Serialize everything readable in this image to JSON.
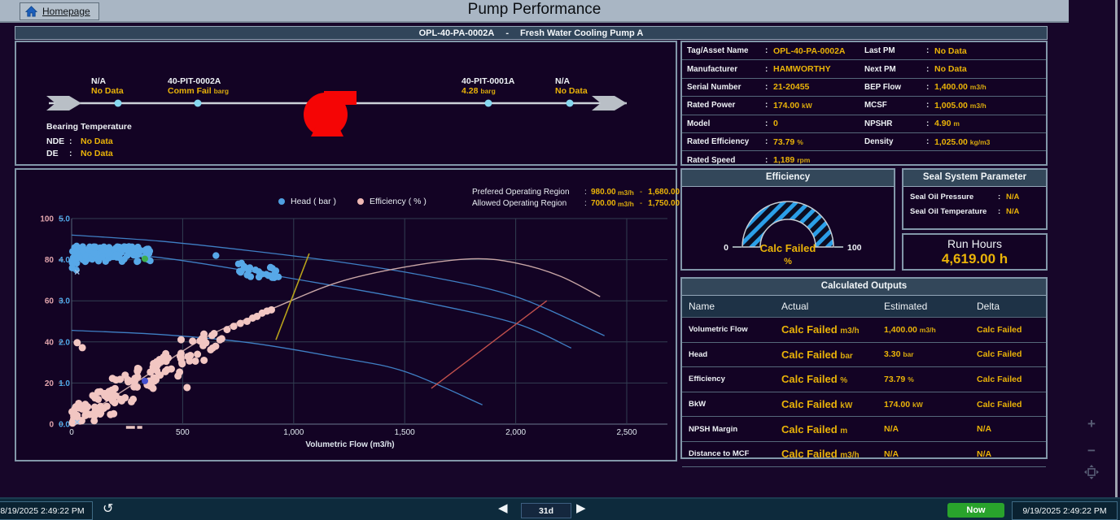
{
  "punct": {
    "colon": ":",
    "dash": "-"
  },
  "header": {
    "homepage_label": "Homepage",
    "title": "Pump Performance"
  },
  "subheader": {
    "tag": "OPL-40-PA-0002A",
    "separator": "-",
    "name": "Fresh Water Cooling Pump A"
  },
  "schematic": {
    "sensors": [
      {
        "tag": "N/A",
        "value": "No Data",
        "unit": ""
      },
      {
        "tag": "40-PIT-0002A",
        "value": "Comm Fail",
        "unit": "barg"
      },
      {
        "tag": "40-PIT-0001A",
        "value": "4.28",
        "unit": "barg"
      },
      {
        "tag": "N/A",
        "value": "No Data",
        "unit": ""
      }
    ],
    "bearing": {
      "title": "Bearing Temperature",
      "rows": [
        {
          "label": "NDE",
          "value": "No Data"
        },
        {
          "label": "DE",
          "value": "No Data"
        }
      ]
    }
  },
  "asset_info": {
    "rows": [
      {
        "l1": "Tag/Asset Name",
        "v1": "OPL-40-PA-0002A",
        "u1": "",
        "l2": "Last PM",
        "v2": "No Data",
        "u2": ""
      },
      {
        "l1": "Manufacturer",
        "v1": "HAMWORTHY",
        "u1": "",
        "l2": "Next PM",
        "v2": "No Data",
        "u2": ""
      },
      {
        "l1": "Serial Number",
        "v1": "21-20455",
        "u1": "",
        "l2": "BEP Flow",
        "v2": "1,400.00",
        "u2": "m3/h"
      },
      {
        "l1": "Rated Power",
        "v1": "174.00",
        "u1": "kW",
        "l2": "MCSF",
        "v2": "1,005.00",
        "u2": "m3/h"
      },
      {
        "l1": "Model",
        "v1": "0",
        "u1": "",
        "l2": "NPSHR",
        "v2": "4.90",
        "u2": "m"
      },
      {
        "l1": "Rated Efficiency",
        "v1": "73.79",
        "u1": "%",
        "l2": "Density",
        "v2": "1,025.00",
        "u2": "kg/m3"
      },
      {
        "l1": "Rated Speed",
        "v1": "1,189",
        "u1": "rpm",
        "l2": "",
        "v2": "",
        "u2": ""
      }
    ]
  },
  "chart": {
    "legend": [
      {
        "label": "Head ( bar )",
        "color": "#4f9fe0"
      },
      {
        "label": "Efficiency ( % )",
        "color": "#efb8b4"
      }
    ],
    "regions": [
      {
        "label": "Prefered Operating Region",
        "from": "980.00",
        "to": "1,680.00",
        "unit": "m3/h"
      },
      {
        "label": "Allowed Operating Region",
        "from": "700.00",
        "to": "1,750.00",
        "unit": "m3/h"
      }
    ],
    "chart_data": {
      "type": "scatter+line",
      "xlabel": "Volumetric Flow (m3/h)",
      "xlim": [
        0,
        2700
      ],
      "x_ticks": [
        "0",
        "500",
        "1,000",
        "1,500",
        "2,000",
        "2,500"
      ],
      "x_tick_values": [
        0,
        500,
        1000,
        1500,
        2000,
        2500
      ],
      "head_axis": {
        "label": "Head (bar)",
        "color": "#4fa8e8",
        "lim": [
          0,
          5
        ],
        "ticks": [
          "0.0",
          "1.0",
          "2.0",
          "3.0",
          "4.0",
          "5.0"
        ],
        "values": [
          0,
          1,
          2,
          3,
          4,
          5
        ]
      },
      "eff_axis": {
        "label": "Efficiency (%)",
        "color": "#e2a5ad",
        "lim": [
          0,
          100
        ],
        "ticks": [
          "0",
          "20",
          "40",
          "60",
          "80",
          "100"
        ],
        "values": [
          0,
          20,
          40,
          60,
          80,
          100
        ]
      },
      "curves": [
        {
          "name": "head-curve-upper",
          "color": "#3f7fc4",
          "width": 1.3,
          "points": [
            [
              0,
              4.6
            ],
            [
              400,
              4.45
            ],
            [
              800,
              4.22
            ],
            [
              1200,
              3.95
            ],
            [
              1600,
              3.6
            ],
            [
              2000,
              3.1
            ],
            [
              2400,
              2.15
            ]
          ]
        },
        {
          "name": "head-curve-mid",
          "color": "#3f7fc4",
          "width": 1.3,
          "points": [
            [
              0,
              4.25
            ],
            [
              400,
              4.05
            ],
            [
              800,
              3.72
            ],
            [
              1200,
              3.35
            ],
            [
              1600,
              2.95
            ],
            [
              2000,
              2.45
            ],
            [
              2250,
              1.85
            ]
          ]
        },
        {
          "name": "head-curve-lower",
          "color": "#3f7fc4",
          "width": 1.3,
          "points": [
            [
              0,
              2.28
            ],
            [
              400,
              2.18
            ],
            [
              800,
              1.98
            ],
            [
              1200,
              1.62
            ],
            [
              1500,
              1.28
            ],
            [
              1850,
              0.47
            ]
          ]
        },
        {
          "name": "efficiency-curve",
          "color": "#c9a6a6",
          "width": 1.4,
          "points": [
            [
              0,
              0
            ],
            [
              300,
              1.05
            ],
            [
              600,
              2.1
            ],
            [
              900,
              2.8
            ],
            [
              1200,
              3.45
            ],
            [
              1500,
              3.82
            ],
            [
              1800,
              4.02
            ],
            [
              2000,
              3.92
            ],
            [
              2200,
              3.6
            ],
            [
              2380,
              3.1
            ]
          ]
        },
        {
          "name": "region-line-yellow",
          "color": "#b8a21a",
          "width": 1.6,
          "points": [
            [
              920,
              2.05
            ],
            [
              1070,
              4.15
            ]
          ]
        },
        {
          "name": "mcsf-line-red",
          "color": "#c0504d",
          "width": 1.4,
          "points": [
            [
              1620,
              0.87
            ],
            [
              2140,
              3.0
            ]
          ]
        }
      ],
      "scatter": [
        {
          "name": "head-points",
          "color": "#57a8e8",
          "r": 4.2,
          "seed": 7,
          "boxes": [
            [
              0,
              360,
              3.95,
              4.32,
              115
            ],
            [
              0,
              25,
              3.75,
              4.35,
              12
            ],
            [
              745,
              935,
              3.55,
              3.92,
              26
            ]
          ],
          "points": [
            [
              650,
              4.1
            ]
          ]
        },
        {
          "name": "efficiency-points",
          "color": "#f2c6c2",
          "r": 4.5,
          "seed": 13,
          "boxes": [
            [
              0,
              110,
              0.02,
              0.55,
              26
            ],
            [
              90,
              200,
              0.15,
              0.85,
              24
            ],
            [
              180,
              300,
              0.5,
              1.2,
              22
            ],
            [
              280,
              400,
              0.85,
              1.5,
              20
            ],
            [
              380,
              500,
              1.15,
              1.8,
              18
            ],
            [
              480,
              600,
              1.5,
              2.1,
              16
            ],
            [
              580,
              680,
              1.8,
              2.25,
              10
            ]
          ],
          "points": [
            [
              25,
              1.98
            ],
            [
              48,
              1.86
            ],
            [
              520,
              0.89
            ],
            [
              700,
              2.3
            ],
            [
              730,
              2.38
            ],
            [
              760,
              2.45
            ],
            [
              790,
              2.5
            ],
            [
              815,
              2.58
            ],
            [
              835,
              2.62
            ],
            [
              858,
              2.7
            ],
            [
              880,
              2.75
            ],
            [
              900,
              2.78
            ]
          ]
        }
      ],
      "x_markers": [
        [
          25,
          3.7
        ],
        [
          25,
          0.05
        ]
      ],
      "special_points": [
        {
          "x": 330,
          "y": 4.02,
          "color": "#3faf4e"
        },
        {
          "x": 330,
          "y": 1.05,
          "color": "#4450cf"
        }
      ],
      "bottom_dashes": [
        [
          245,
          285
        ],
        [
          295,
          318
        ]
      ]
    }
  },
  "gauge": {
    "title": "Efficiency",
    "min": "0",
    "max": "100",
    "value": "Calc Failed",
    "unit": "%"
  },
  "seal": {
    "title": "Seal System Parameter",
    "rows": [
      {
        "label": "Seal Oil Pressure",
        "value": "N/A"
      },
      {
        "label": "Seal Oil Temperature",
        "value": "N/A"
      }
    ]
  },
  "run_hours": {
    "title": "Run Hours",
    "value": "4,619.00 h"
  },
  "calc": {
    "title": "Calculated Outputs",
    "headers": [
      "Name",
      "Actual",
      "Estimated",
      "Delta"
    ],
    "rows": [
      {
        "name": "Volumetric Flow",
        "actual": "Calc Failed",
        "actual_unit": "m3/h",
        "est": "1,400.00",
        "est_unit": "m3/h",
        "delta": "Calc Failed"
      },
      {
        "name": "Head",
        "actual": "Calc Failed",
        "actual_unit": "bar",
        "est": "3.30",
        "est_unit": "bar",
        "delta": "Calc Failed"
      },
      {
        "name": "Efficiency",
        "actual": "Calc Failed",
        "actual_unit": "%",
        "est": "73.79",
        "est_unit": "%",
        "delta": "Calc Failed"
      },
      {
        "name": "BkW",
        "actual": "Calc Failed",
        "actual_unit": "kW",
        "est": "174.00",
        "est_unit": "kW",
        "delta": "Calc Failed"
      },
      {
        "name": "NPSH Margin",
        "actual": "Calc Failed",
        "actual_unit": "m",
        "est": "N/A",
        "est_unit": "",
        "delta": "N/A"
      },
      {
        "name": "Distance to MCF",
        "actual": "Calc Failed",
        "actual_unit": "m3/h",
        "est": "N/A",
        "est_unit": "",
        "delta": "N/A"
      }
    ]
  },
  "footer": {
    "date_from": "8/19/2025 2:49:22 PM",
    "range": "31d",
    "now_label": "Now",
    "date_to": "9/19/2025 2:49:22 PM"
  },
  "zoom_controls": {
    "plus": "+",
    "minus": "−"
  }
}
